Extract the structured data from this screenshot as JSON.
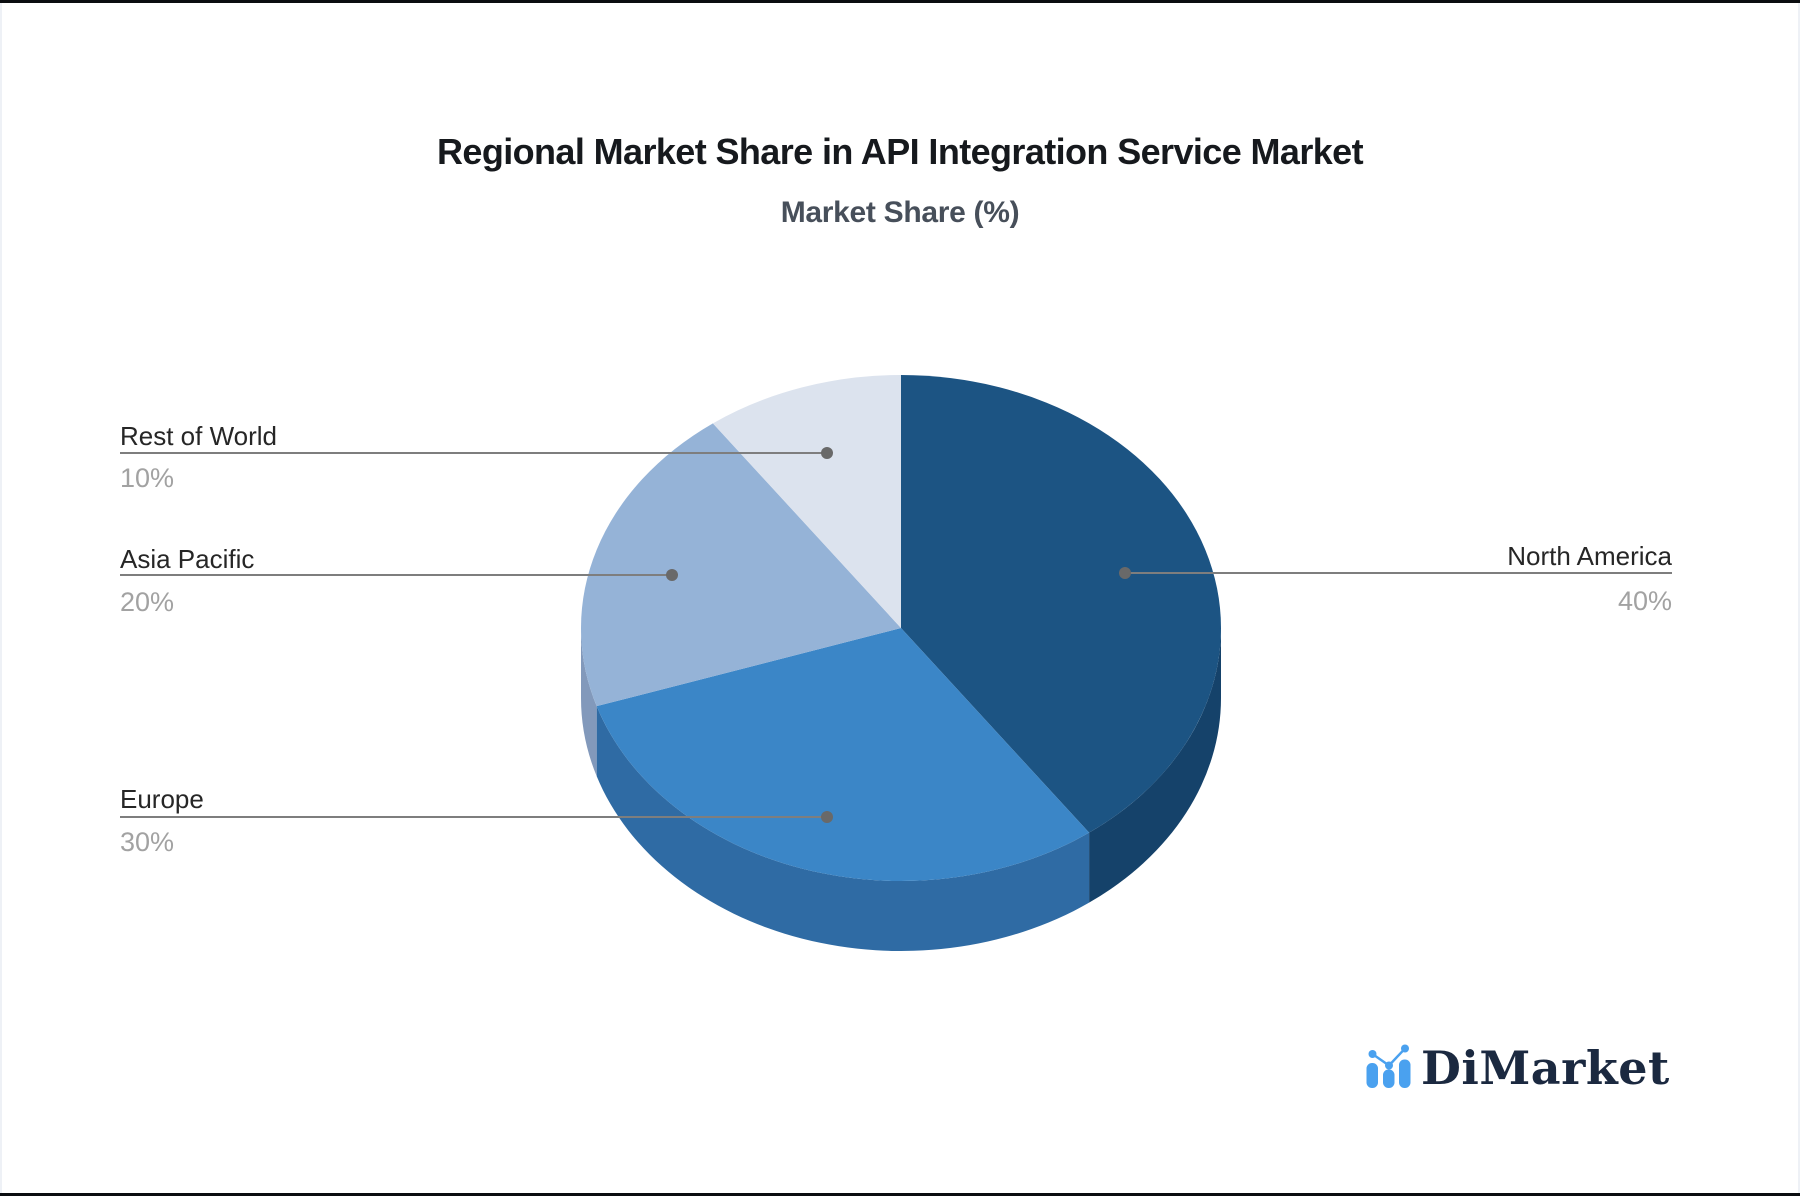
{
  "header": {
    "title": "Regional Market Share in API Integration Service Market",
    "subtitle": "Market Share (%)"
  },
  "chart_data": {
    "type": "pie",
    "style": "3d",
    "title": "Regional Market Share in API Integration Service Market",
    "subtitle": "Market Share (%)",
    "unit": "%",
    "start_angle_deg": 0,
    "direction": "clockwise",
    "legend": "none",
    "slices": [
      {
        "label": "North America",
        "value": 40,
        "display": "40%",
        "color": "#1c5483",
        "side_color": "#15426a"
      },
      {
        "label": "Europe",
        "value": 30,
        "display": "30%",
        "color": "#3b86c7",
        "side_color": "#2f6ba4"
      },
      {
        "label": "Asia Pacific",
        "value": 20,
        "display": "20%",
        "color": "#95b3d7",
        "side_color": "#8299bb"
      },
      {
        "label": "Rest of World",
        "value": 10,
        "display": "10%",
        "color": "#dce3ee",
        "side_color": "#c3cddd"
      }
    ],
    "connector_color": "#7e7e7e",
    "connector_dot_color": "#696969",
    "label_color": "#262626",
    "value_color": "#a2a2a2"
  },
  "branding": {
    "logo_text": "DiMarket",
    "logo_icon": "bar-chart-logo-icon",
    "logo_text_color": "#1b2940",
    "logo_accent_color": "#4aa1ef"
  }
}
